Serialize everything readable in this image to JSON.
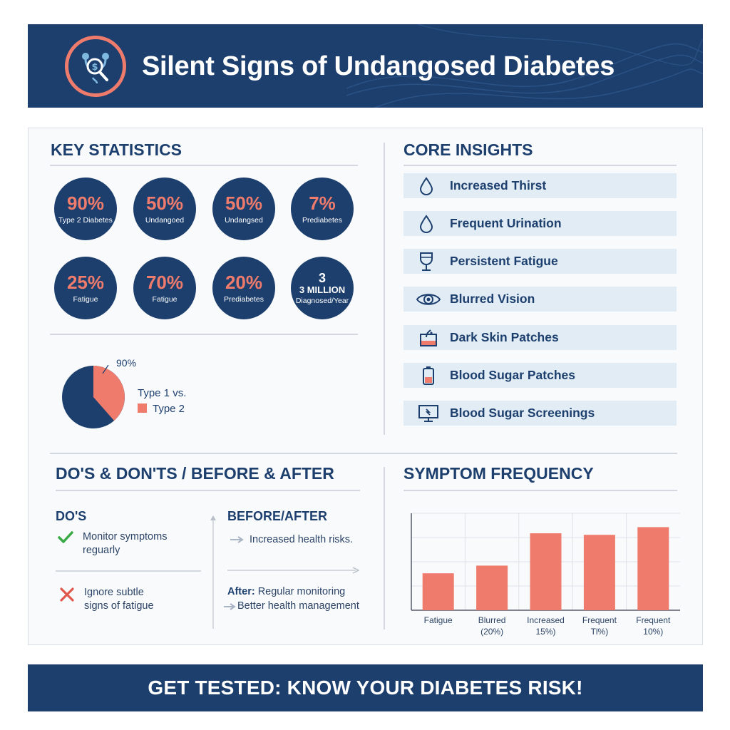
{
  "header": {
    "title": "Silent Signs of Undangosed Diabetes",
    "logo_icon": "stethoscope-magnifier-icon"
  },
  "key_statistics": {
    "title": "KEY STATISTICS",
    "stats": [
      {
        "value": "90%",
        "label": "Type 2 Diabetes"
      },
      {
        "value": "50%",
        "label": "Undangoed"
      },
      {
        "value": "50%",
        "label": "Undangsed"
      },
      {
        "value": "7%",
        "label": "Prediabetes"
      },
      {
        "value": "25%",
        "label": "Fatigue"
      },
      {
        "value": "70%",
        "label": "Fatigue"
      },
      {
        "value": "20%",
        "label": "Prediabetes"
      },
      {
        "value": "3",
        "value2": "3 MILLION",
        "label": "Diagnosed/Year"
      }
    ],
    "pie": {
      "callout": "90%",
      "legend_line1": "Type 1 vs.",
      "legend_line2": "Type 2",
      "colors": {
        "type1": "#1d3f6e",
        "type2": "#ef7b6c"
      }
    }
  },
  "core_insights": {
    "title": "CORE INSIGHTS",
    "items": [
      {
        "label": "Increased Thirst",
        "icon": "water-drop-icon"
      },
      {
        "label": "Frequent Urination",
        "icon": "water-drop-icon"
      },
      {
        "label": "Persistent Fatigue",
        "icon": "cup-icon"
      },
      {
        "label": "Blurred Vision",
        "icon": "eye-icon"
      },
      {
        "label": "Dark Skin Patches",
        "icon": "skin-icon"
      },
      {
        "label": "Blood Sugar Patches",
        "icon": "battery-icon"
      },
      {
        "label": "Blood Sugar Screenings",
        "icon": "monitor-icon"
      }
    ]
  },
  "dos_donts": {
    "title": "DO'S & DON'TS / BEFORE & AFTER",
    "dos_title": "DO'S",
    "do_line1": "Monitor symptoms",
    "do_line2": "reguarly",
    "dont_line1": "Ignore subtle",
    "dont_line2": "signs of fatigue",
    "before_after_title": "BEFORE/AFTER",
    "before_text": "Increased health risks.",
    "after_label": "After:",
    "after_text": "Regular monitoring",
    "after_result": "Better health management"
  },
  "symptom_frequency": {
    "title": "SYMPTOM FREQUENCY"
  },
  "chart_data": {
    "type": "bar",
    "title": "SYMPTOM FREQUENCY",
    "categories": [
      [
        "Fatigue",
        ""
      ],
      [
        "Blurred",
        "(20%)"
      ],
      [
        "Increased",
        "15%)"
      ],
      [
        "Frequent",
        "Tl%)"
      ],
      [
        "Frequent",
        "10%)"
      ]
    ],
    "values": [
      24,
      29,
      50,
      49,
      54
    ],
    "ylim": [
      0,
      63
    ],
    "bar_color": "#ef7b6c",
    "grid": true
  },
  "footer": {
    "cta": "GET TESTED: KNOW YOUR DIABETES RISK!"
  }
}
